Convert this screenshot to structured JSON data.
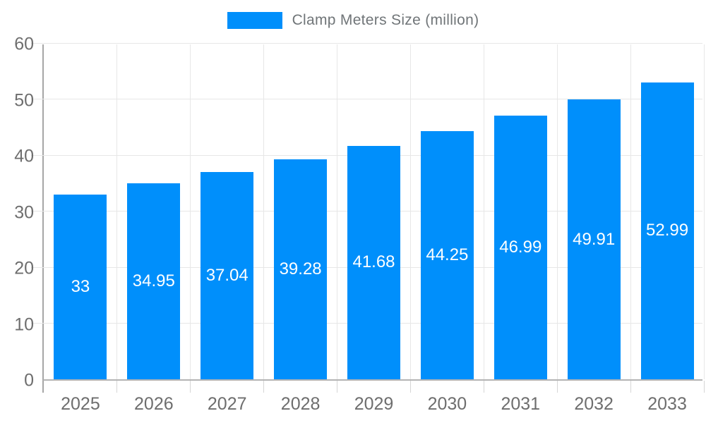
{
  "legend": {
    "series_label": "Clamp Meters Size (million)",
    "swatch_color": "#008FFB"
  },
  "chart_data": {
    "type": "bar",
    "title": "Clamp Meters Size (million)",
    "categories": [
      "2025",
      "2026",
      "2027",
      "2028",
      "2029",
      "2030",
      "2031",
      "2032",
      "2033"
    ],
    "values": [
      33,
      34.95,
      37.04,
      39.28,
      41.68,
      44.25,
      46.99,
      49.91,
      52.99
    ],
    "value_labels": [
      "33",
      "34.95",
      "37.04",
      "39.28",
      "41.68",
      "44.25",
      "46.99",
      "49.91",
      "52.99"
    ],
    "series": [
      {
        "name": "Clamp Meters Size (million)",
        "values": [
          33,
          34.95,
          37.04,
          39.28,
          41.68,
          44.25,
          46.99,
          49.91,
          52.99
        ]
      }
    ],
    "xlabel": "",
    "ylabel": "",
    "ylim": [
      0,
      60
    ],
    "yticks": [
      0,
      10,
      20,
      30,
      40,
      50,
      60
    ],
    "grid": true,
    "legend_position": "top",
    "bar_color": "#008FFB",
    "grid_color": "#e7e7e7",
    "axis_label_color": "#6e6e6e",
    "value_label_color": "#ffffff"
  }
}
